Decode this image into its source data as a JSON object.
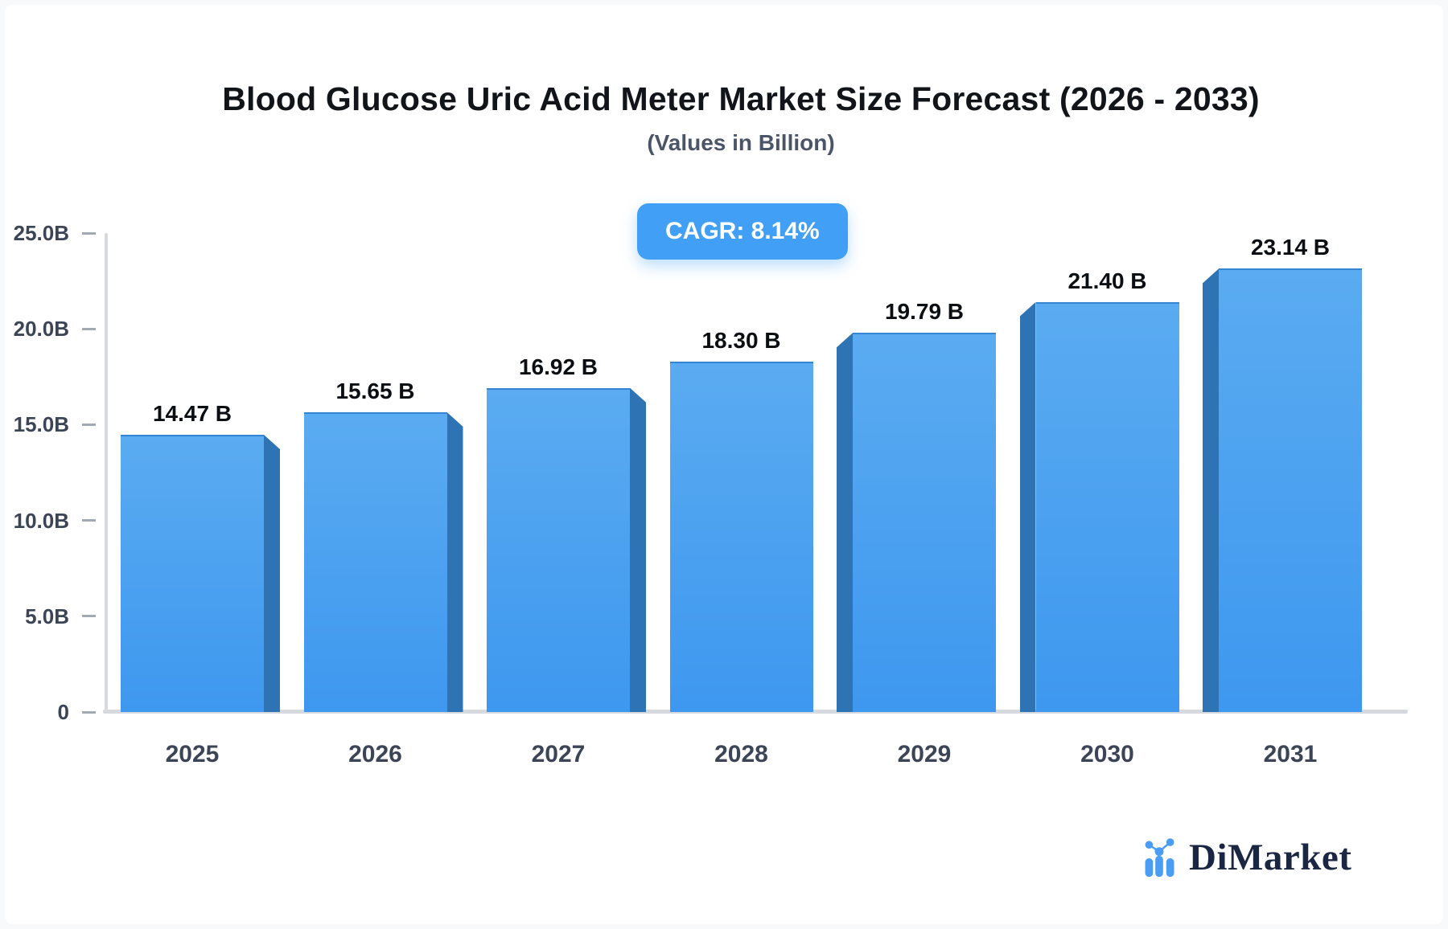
{
  "header": {
    "note": "header text lives in chart_data.title / chart_data.subtitle"
  },
  "chart_data": {
    "type": "bar",
    "title": "Blood Glucose Uric Acid Meter Market Size Forecast (2026 - 2033)",
    "subtitle": "(Values in Billion)",
    "cagr_label": "CAGR: 8.14%",
    "categories": [
      "2025",
      "2026",
      "2027",
      "2028",
      "2029",
      "2030",
      "2031"
    ],
    "values": [
      14.47,
      15.65,
      16.92,
      18.3,
      19.79,
      21.4,
      23.14
    ],
    "value_labels": [
      "14.47 B",
      "15.65 B",
      "16.92 B",
      "18.30 B",
      "19.79 B",
      "21.40 B",
      "23.14 B"
    ],
    "ylim": [
      0,
      25
    ],
    "yticks": [
      {
        "label": "25.0B",
        "value": 25
      },
      {
        "label": "20.0B",
        "value": 20
      },
      {
        "label": "15.0B",
        "value": 15
      },
      {
        "label": "10.0B",
        "value": 10
      },
      {
        "label": "5.0B",
        "value": 5
      },
      {
        "label": "0",
        "value": 0
      }
    ],
    "xlabel": "",
    "ylabel": "",
    "grid": false,
    "legend": null,
    "colors": {
      "bar_top": "#5aabf1",
      "bar_bottom": "#3e98ef",
      "bar_side": "#2e74b5",
      "badge_bg": "#41a0f6",
      "axis": "#d6d9de",
      "tick_label": "#3b4556",
      "value_label": "#0b0e13"
    }
  },
  "logo": {
    "text": "DiMarket",
    "icon": "mini-bar-chart-icon",
    "text_color": "#1a2642",
    "icon_color": "#4a9df3"
  }
}
